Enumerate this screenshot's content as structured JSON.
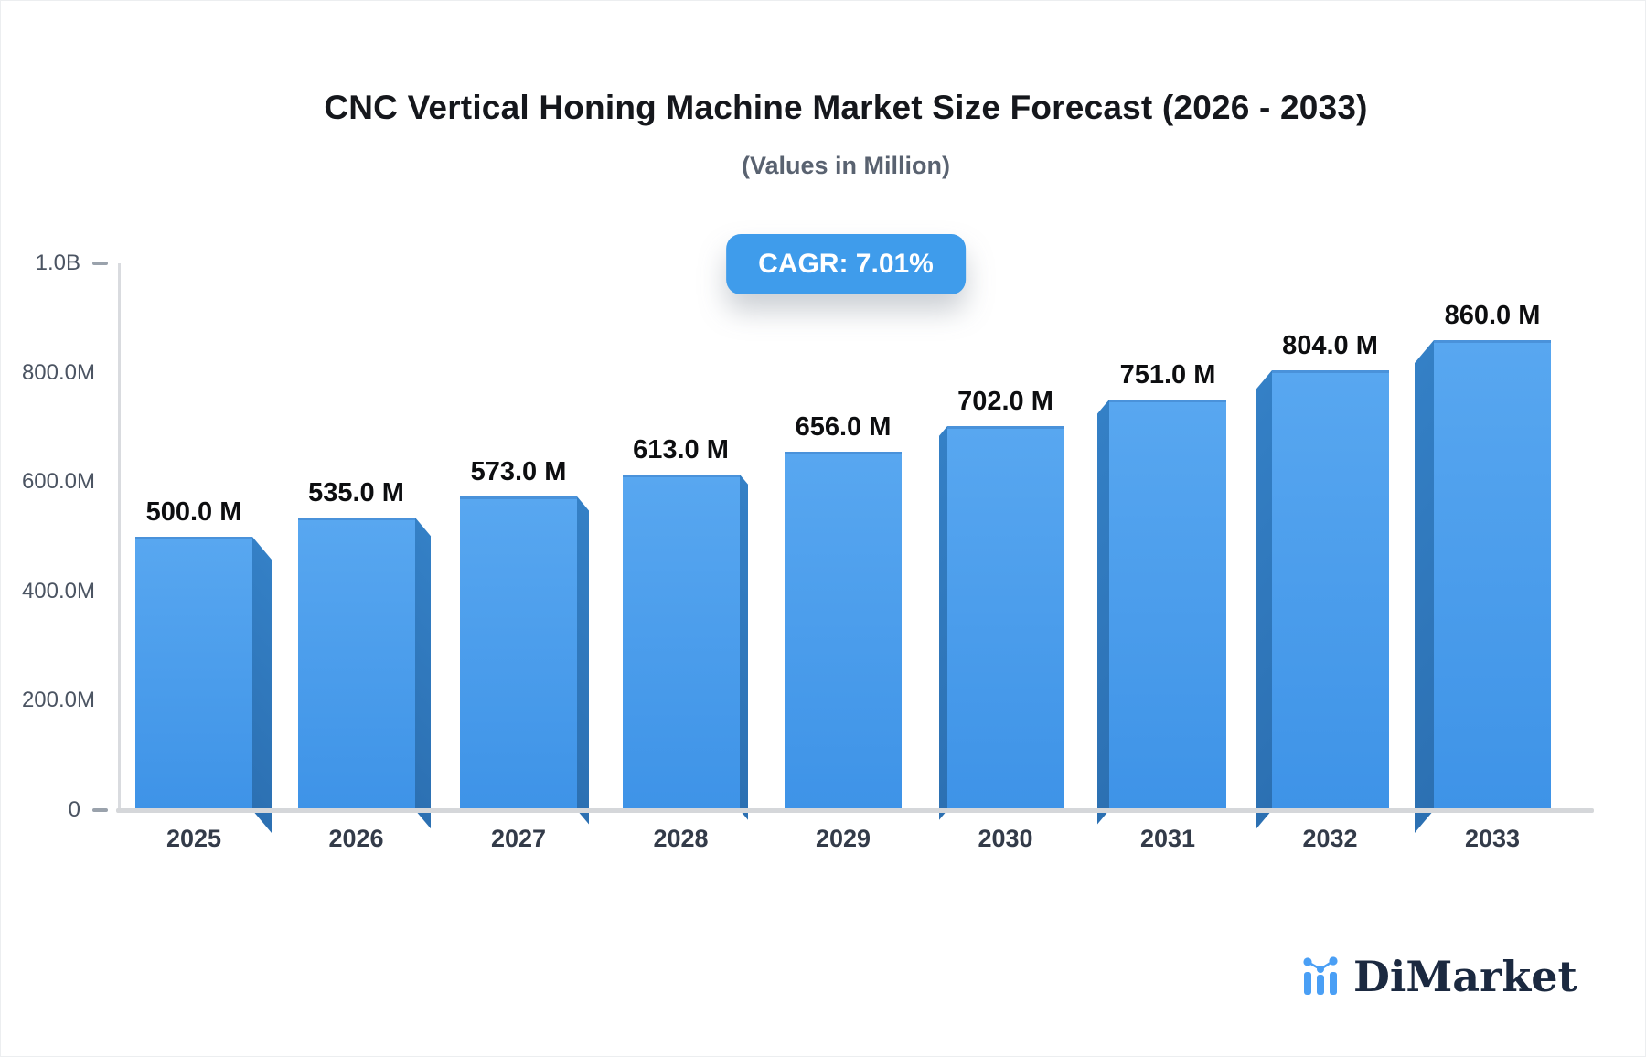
{
  "header": {
    "title": "CNC Vertical Honing Machine Market Size Forecast (2026 - 2033)",
    "subtitle": "(Values in Million)",
    "cagr_badge": "CAGR: 7.01%"
  },
  "brand": {
    "name": "DiMarket"
  },
  "colors": {
    "badge_bg": "#3f9ceb",
    "bar_face_top": "#58a7f0",
    "bar_face_bottom": "#3e93e7",
    "bar_side": "#2f77bc",
    "axis_line": "#d9dbdf",
    "tick": "#9aa2ac",
    "y_label": "#4b5462",
    "x_label": "#333b49",
    "logo_blue": "#4a9ff5",
    "logo_text": "#1b2940"
  },
  "chart_data": {
    "type": "bar",
    "title": "CNC Vertical Honing Machine Market Size Forecast (2026 - 2033)",
    "subtitle": "(Values in Million)",
    "unit": "Million USD",
    "cagr_percent": 7.01,
    "categories": [
      "2025",
      "2026",
      "2027",
      "2028",
      "2029",
      "2030",
      "2031",
      "2032",
      "2033"
    ],
    "values": [
      500,
      535,
      573,
      613,
      656,
      702,
      751,
      804,
      860
    ],
    "value_labels": [
      "500.0 M",
      "535.0 M",
      "573.0 M",
      "613.0 M",
      "656.0 M",
      "702.0 M",
      "751.0 M",
      "804.0 M",
      "860.0 M"
    ],
    "ylim": [
      0,
      1000
    ],
    "y_ticks": [
      {
        "label": "1.0B",
        "value": 1000,
        "dash": true
      },
      {
        "label": "800.0M",
        "value": 800,
        "dash": false
      },
      {
        "label": "600.0M",
        "value": 600,
        "dash": false
      },
      {
        "label": "400.0M",
        "value": 400,
        "dash": false
      },
      {
        "label": "200.0M",
        "value": 200,
        "dash": false
      },
      {
        "label": "0",
        "value": 0,
        "dash": true
      }
    ],
    "grid": false,
    "legend": "none",
    "bar_style": "3d-perspective-center-vanishing"
  }
}
